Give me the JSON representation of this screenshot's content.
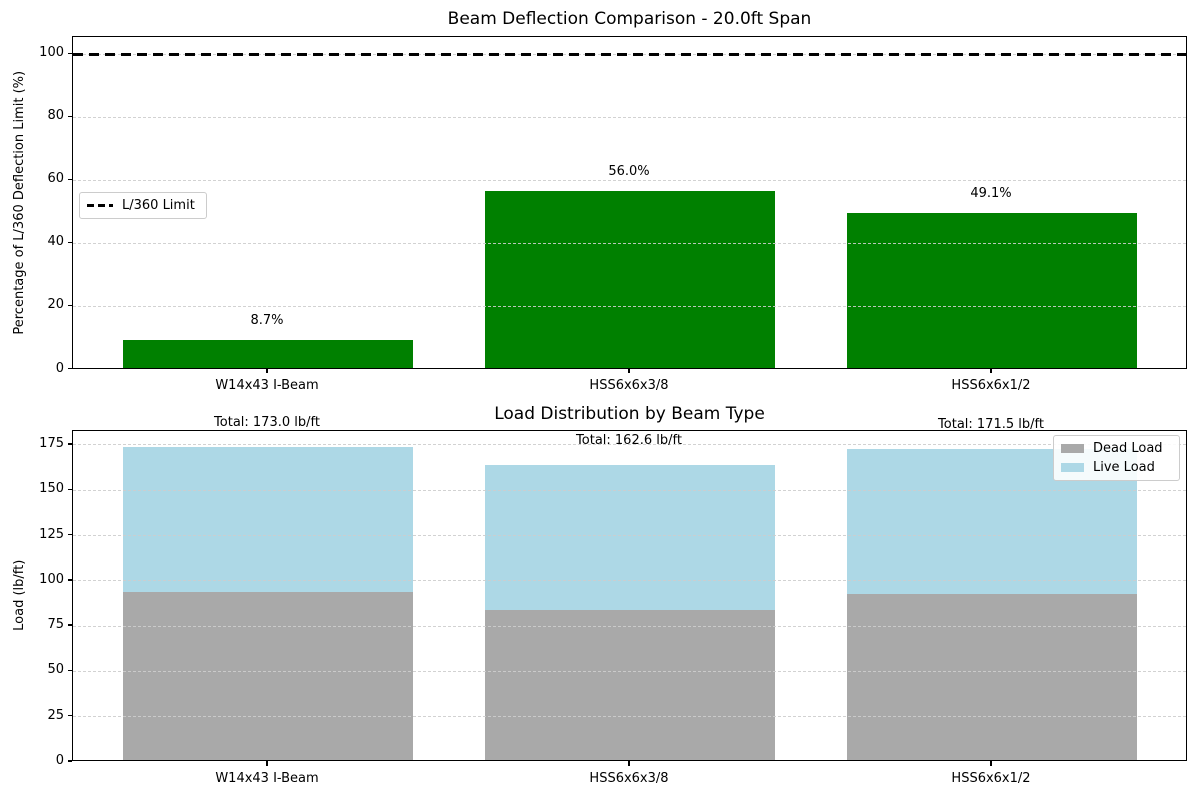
{
  "figure": {
    "background": "#ffffff"
  },
  "chart_data": [
    {
      "id": "deflection",
      "type": "bar",
      "title": "Beam Deflection Comparison - 20.0ft Span",
      "ylabel": "Percentage of L/360 Deflection Limit (%)",
      "xlabel": "",
      "categories": [
        "W14x43 I-Beam",
        "HSS6x6x3/8",
        "HSS6x6x1/2"
      ],
      "values": [
        8.7,
        56.0,
        49.1
      ],
      "bar_labels": [
        "8.7%",
        "56.0%",
        "49.1%"
      ],
      "bar_color": "#008000",
      "ylim": [
        0,
        105.5
      ],
      "yticks": [
        0,
        20,
        40,
        60,
        80,
        100
      ],
      "grid": true,
      "reference_line": {
        "value": 100,
        "color": "#000000",
        "style": "dashed",
        "label": "L/360 Limit"
      },
      "legend": {
        "position": "center-left",
        "entries": [
          {
            "label": "L/360 Limit",
            "swatch": "dashed-line",
            "color": "#000000"
          }
        ]
      }
    },
    {
      "id": "loads",
      "type": "stacked-bar",
      "title": "Load Distribution by Beam Type",
      "ylabel": "Load (lb/ft)",
      "xlabel": "",
      "categories": [
        "W14x43 I-Beam",
        "HSS6x6x3/8",
        "HSS6x6x1/2"
      ],
      "series": [
        {
          "name": "Dead Load",
          "color": "#a9a9a9",
          "values": [
            93.0,
            82.6,
            91.5
          ]
        },
        {
          "name": "Live Load",
          "color": "#add8e6",
          "values": [
            80.0,
            80.0,
            80.0
          ]
        }
      ],
      "totals": [
        173.0,
        162.6,
        171.5
      ],
      "total_labels": [
        "Total: 173.0 lb/ft",
        "Total: 162.6 lb/ft",
        "Total: 171.5 lb/ft"
      ],
      "ylim": [
        0,
        183
      ],
      "yticks": [
        0,
        25,
        50,
        75,
        100,
        125,
        150,
        175
      ],
      "grid": true,
      "legend": {
        "position": "upper-right",
        "entries": [
          {
            "label": "Dead Load",
            "swatch": "patch",
            "color": "#a9a9a9"
          },
          {
            "label": "Live Load",
            "swatch": "patch",
            "color": "#add8e6"
          }
        ]
      }
    }
  ]
}
